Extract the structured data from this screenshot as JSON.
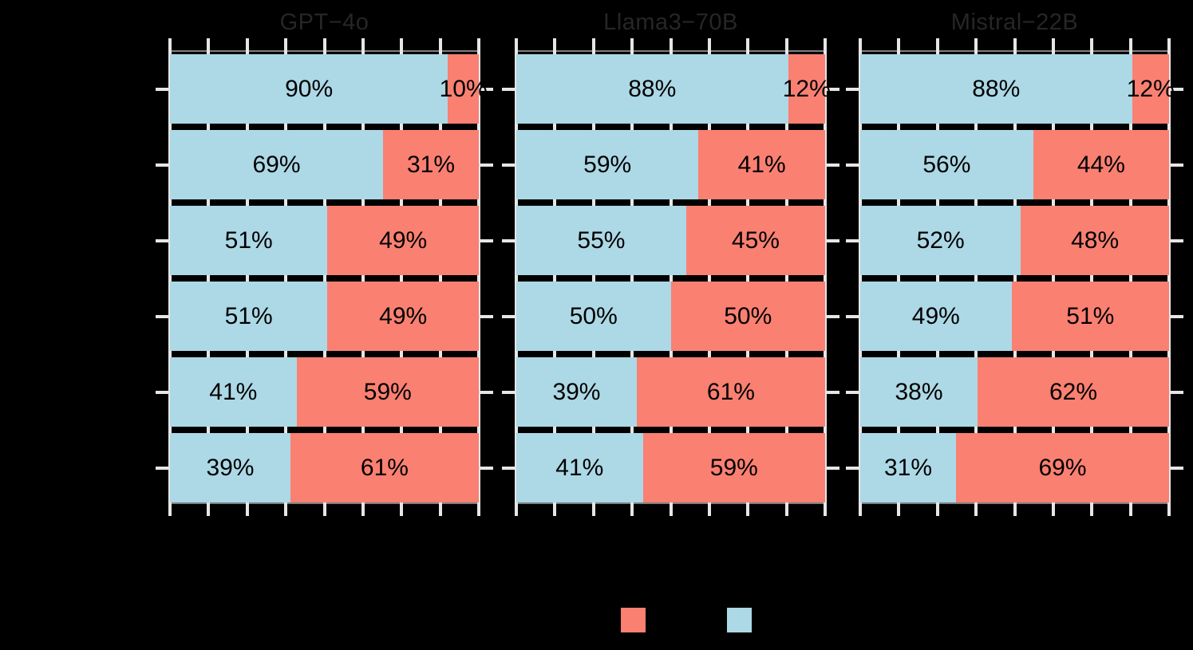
{
  "colors": {
    "background": "#000000",
    "bar_blue": "#ADD8E6",
    "bar_salmon": "#FA8072",
    "axis_ticks_and_grid": "#E6E6E6",
    "panel_title": "#262626",
    "bar_label": "#000000"
  },
  "panels": [
    {
      "title": "GPT−4o",
      "rows": [
        {
          "values": [
            90,
            10
          ],
          "labels": [
            "90%",
            "10%"
          ]
        },
        {
          "values": [
            69,
            31
          ],
          "labels": [
            "69%",
            "31%"
          ]
        },
        {
          "values": [
            51,
            49
          ],
          "labels": [
            "51%",
            "49%"
          ]
        },
        {
          "values": [
            51,
            49
          ],
          "labels": [
            "51%",
            "49%"
          ]
        },
        {
          "values": [
            41,
            59
          ],
          "labels": [
            "41%",
            "59%"
          ]
        },
        {
          "values": [
            39,
            61
          ],
          "labels": [
            "39%",
            "61%"
          ]
        }
      ]
    },
    {
      "title": "Llama3−70B",
      "rows": [
        {
          "values": [
            88,
            12
          ],
          "labels": [
            "88%",
            "12%"
          ]
        },
        {
          "values": [
            59,
            41
          ],
          "labels": [
            "59%",
            "41%"
          ]
        },
        {
          "values": [
            55,
            45
          ],
          "labels": [
            "55%",
            "45%"
          ]
        },
        {
          "values": [
            50,
            50
          ],
          "labels": [
            "50%",
            "50%"
          ]
        },
        {
          "values": [
            39,
            61
          ],
          "labels": [
            "39%",
            "61%"
          ]
        },
        {
          "values": [
            41,
            59
          ],
          "labels": [
            "41%",
            "59%"
          ]
        }
      ]
    },
    {
      "title": "Mistral−22B",
      "rows": [
        {
          "values": [
            88,
            12
          ],
          "labels": [
            "88%",
            "12%"
          ]
        },
        {
          "values": [
            56,
            44
          ],
          "labels": [
            "56%",
            "44%"
          ]
        },
        {
          "values": [
            52,
            48
          ],
          "labels": [
            "52%",
            "48%"
          ]
        },
        {
          "values": [
            49,
            51
          ],
          "labels": [
            "49%",
            "51%"
          ]
        },
        {
          "values": [
            38,
            62
          ],
          "labels": [
            "38%",
            "62%"
          ]
        },
        {
          "values": [
            31,
            69
          ],
          "labels": [
            "31%",
            "69%"
          ]
        }
      ]
    }
  ],
  "legend": {
    "swatches": [
      {
        "name": "salmon-swatch",
        "color": "#FA8072"
      },
      {
        "name": "lightblue-swatch",
        "color": "#ADD8E6"
      }
    ]
  },
  "chart_data": {
    "type": "bar",
    "orientation": "horizontal",
    "stacked": true,
    "unit": "percent",
    "x_range": [
      0,
      100
    ],
    "x_tick_interval": 12.5,
    "grid": "vertical white gridlines at each tick, visible in gaps between bars",
    "legend_position": "bottom-center",
    "series_order_in_each_row": [
      "lightblue",
      "salmon"
    ],
    "facets": [
      {
        "title": "GPT−4o",
        "rows": [
          [
            90,
            10
          ],
          [
            69,
            31
          ],
          [
            51,
            49
          ],
          [
            51,
            49
          ],
          [
            41,
            59
          ],
          [
            39,
            61
          ]
        ]
      },
      {
        "title": "Llama3−70B",
        "rows": [
          [
            88,
            12
          ],
          [
            59,
            41
          ],
          [
            55,
            45
          ],
          [
            50,
            50
          ],
          [
            39,
            61
          ],
          [
            41,
            59
          ]
        ]
      },
      {
        "title": "Mistral−22B",
        "rows": [
          [
            88,
            12
          ],
          [
            56,
            44
          ],
          [
            52,
            48
          ],
          [
            49,
            51
          ],
          [
            38,
            62
          ],
          [
            31,
            69
          ]
        ]
      }
    ],
    "notes": "Category labels (y-axis), x-axis tick labels, axis title and legend text are rendered in black on a black background and are not visible; only legend color swatches are visible."
  }
}
